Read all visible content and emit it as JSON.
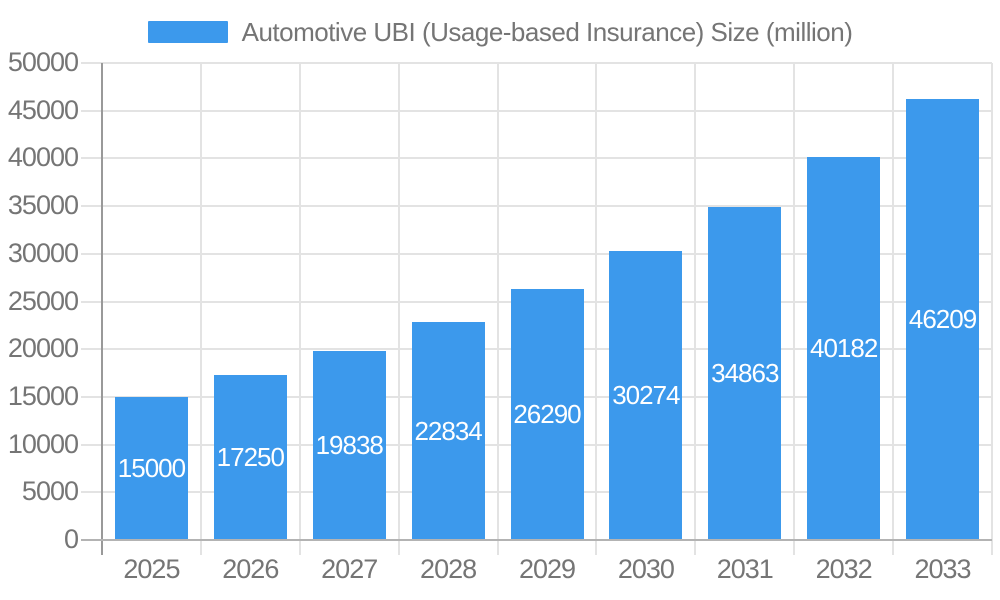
{
  "legend": {
    "label": "Automotive UBI (Usage-based Insurance) Size (million)"
  },
  "chart_data": {
    "type": "bar",
    "title": "Automotive UBI (Usage-based Insurance) Size (million)",
    "categories": [
      "2025",
      "2026",
      "2027",
      "2028",
      "2029",
      "2030",
      "2031",
      "2032",
      "2033"
    ],
    "values": [
      15000,
      17250,
      19838,
      22834,
      26290,
      30274,
      34863,
      40182,
      46209
    ],
    "series": [
      {
        "name": "Automotive UBI (Usage-based Insurance) Size (million)",
        "values": [
          15000,
          17250,
          19838,
          22834,
          26290,
          30274,
          34863,
          40182,
          46209
        ]
      }
    ],
    "xlabel": "",
    "ylabel": "",
    "ylim": [
      0,
      50000
    ],
    "ytick_step": 5000,
    "grid": true,
    "legend_position": "top",
    "value_labels": "inside-center",
    "colors": {
      "bar": "#3C99EC",
      "value_label": "#FFFFFF",
      "axis_text": "#757575",
      "gridline": "#E3E3E3",
      "y_axis_line": "#999999",
      "x_axis_line": "#B3B3B3",
      "background": "#FFFFFF"
    }
  }
}
